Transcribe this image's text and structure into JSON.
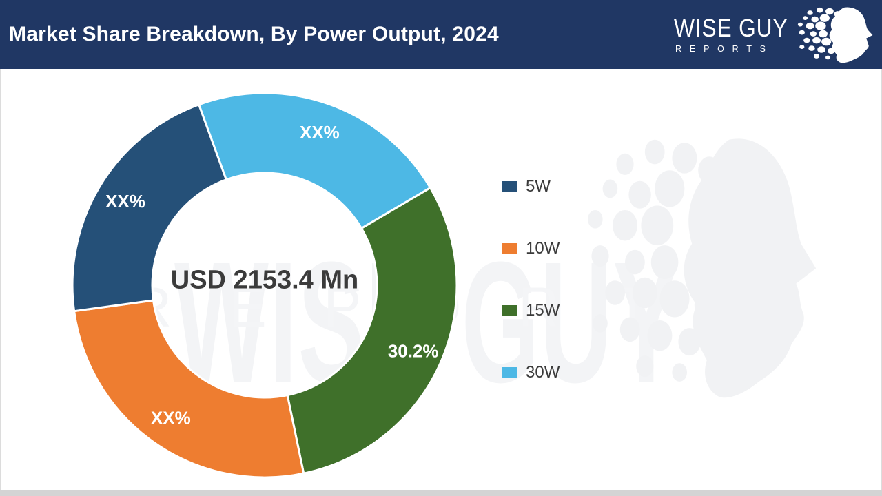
{
  "header": {
    "title": "Market Share Breakdown, By Power Output, 2024",
    "logo": {
      "line1": "WISE GUY",
      "line2": "R E P O R T S"
    }
  },
  "colors": {
    "header_bg": "#203764",
    "footer_bar": "#d4d4d4",
    "title_text": "#ffffff",
    "center_text": "#3b3b3b",
    "legend_text": "#3a3a3a",
    "watermark": "#f2f3f5"
  },
  "chart_data": {
    "type": "pie",
    "subtype": "donut",
    "title": "Market Share Breakdown, By Power Output, 2024",
    "center_label": "USD 2153.4 Mn",
    "start_angle_deg": -20,
    "direction": "clockwise",
    "legend_position": "right",
    "slices": [
      {
        "name": "30W",
        "label": "XX%",
        "percent": 22.1,
        "masked": true,
        "color": "#4DB8E5"
      },
      {
        "name": "15W",
        "label": "30.2%",
        "percent": 30.2,
        "masked": false,
        "color": "#3F702A"
      },
      {
        "name": "10W",
        "label": "XX%",
        "percent": 26.1,
        "masked": true,
        "color": "#EE7D30"
      },
      {
        "name": "5W",
        "label": "XX%",
        "percent": 21.6,
        "masked": true,
        "color": "#255078"
      }
    ]
  },
  "legend": {
    "items": [
      {
        "label": "5W",
        "color": "#255078"
      },
      {
        "label": "10W",
        "color": "#EE7D30"
      },
      {
        "label": "15W",
        "color": "#3F702A"
      },
      {
        "label": "30W",
        "color": "#4DB8E5"
      }
    ]
  },
  "watermark": {
    "line1": "WISE GUY",
    "line2": "R E P O R T S"
  }
}
